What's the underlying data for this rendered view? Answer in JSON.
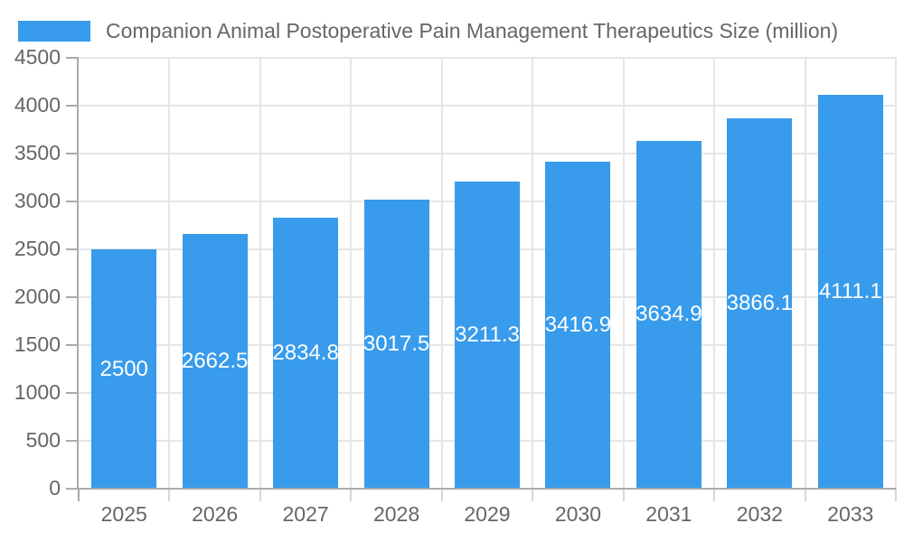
{
  "chart_data": {
    "type": "bar",
    "title": "Companion Animal Postoperative Pain Management Therapeutics Size (million)",
    "categories": [
      "2025",
      "2026",
      "2027",
      "2028",
      "2029",
      "2030",
      "2031",
      "2032",
      "2033"
    ],
    "values": [
      2500,
      2662.5,
      2834.8,
      3017.5,
      3211.3,
      3416.9,
      3634.9,
      3866.1,
      4111.1
    ],
    "value_labels": [
      "2500",
      "2662.5",
      "2834.8",
      "3017.5",
      "3211.3",
      "3416.9",
      "3634.9",
      "3866.1",
      "4111.1"
    ],
    "yticks": [
      0,
      500,
      1000,
      1500,
      2000,
      2500,
      3000,
      3500,
      4000,
      4500
    ],
    "ylim": [
      0,
      4500
    ],
    "xlabel": "",
    "ylabel": "",
    "grid": true,
    "legend_position": "top",
    "colors": {
      "bar": "#389BEB",
      "grid": "#E6E6E6",
      "axis": "#ABABAB",
      "tick_minor": "#D6D6D6",
      "text": "#666666",
      "value_label": "#FFFFFF",
      "background": "#FFFFFF"
    }
  }
}
